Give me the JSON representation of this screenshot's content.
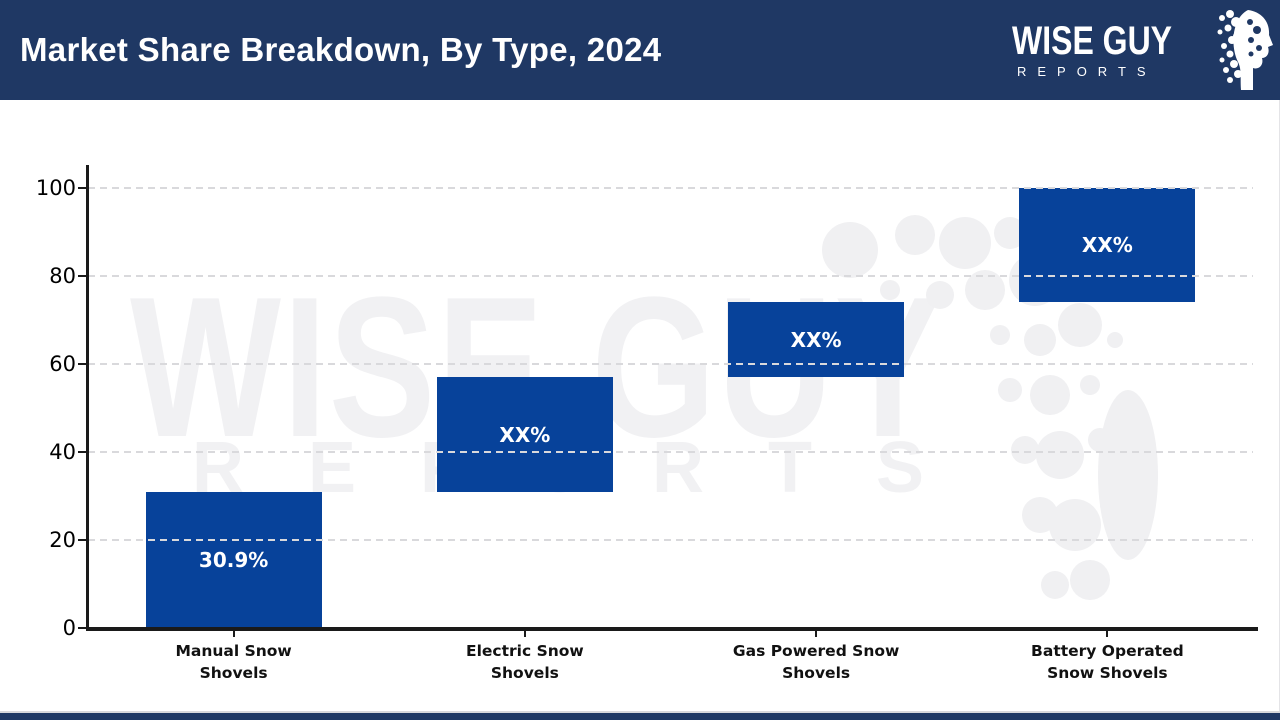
{
  "header": {
    "title": "Market Share Breakdown, By Type, 2024",
    "bg_color": "#1f3864",
    "logo": {
      "wordmark": "WISE GUY",
      "subtext": "REPORTS"
    }
  },
  "watermark": {
    "wordmark": "WISE GUY",
    "subtext": "REPORTS"
  },
  "chart_data": {
    "type": "bar",
    "variant": "waterfall",
    "title": "Market Share Breakdown, By Type, 2024",
    "categories": [
      "Manual Snow Shovels",
      "Electric Snow Shovels",
      "Gas Powered Snow Shovels",
      "Battery Operated Snow Shovels"
    ],
    "category_lines": [
      [
        "Manual Snow",
        "Shovels"
      ],
      [
        "Electric Snow",
        "Shovels"
      ],
      [
        "Gas Powered Snow",
        "Shovels"
      ],
      [
        "Battery Operated",
        "Snow Shovels"
      ]
    ],
    "segments": [
      {
        "category": "Manual Snow Shovels",
        "start": 0,
        "end": 30.9,
        "label": "30.9%"
      },
      {
        "category": "Electric Snow Shovels",
        "start": 30.9,
        "end": 57.0,
        "label": "XX%"
      },
      {
        "category": "Gas Powered Snow Shovels",
        "start": 57.0,
        "end": 74.0,
        "label": "XX%"
      },
      {
        "category": "Battery Operated Snow Shovels",
        "start": 74.0,
        "end": 100,
        "label": "XX%"
      }
    ],
    "ylim": [
      0,
      100
    ],
    "yticks": [
      0,
      20,
      40,
      60,
      80,
      100
    ],
    "xlabel": "",
    "ylabel": "",
    "legend": "none",
    "grid": {
      "show": true,
      "style": "dashed",
      "color": "#d9d9dc",
      "drawn_over_bars": true
    },
    "bar_color": "#07429a",
    "bar_label_color": "#ffffff",
    "axis_color": "#1a1a1a"
  }
}
